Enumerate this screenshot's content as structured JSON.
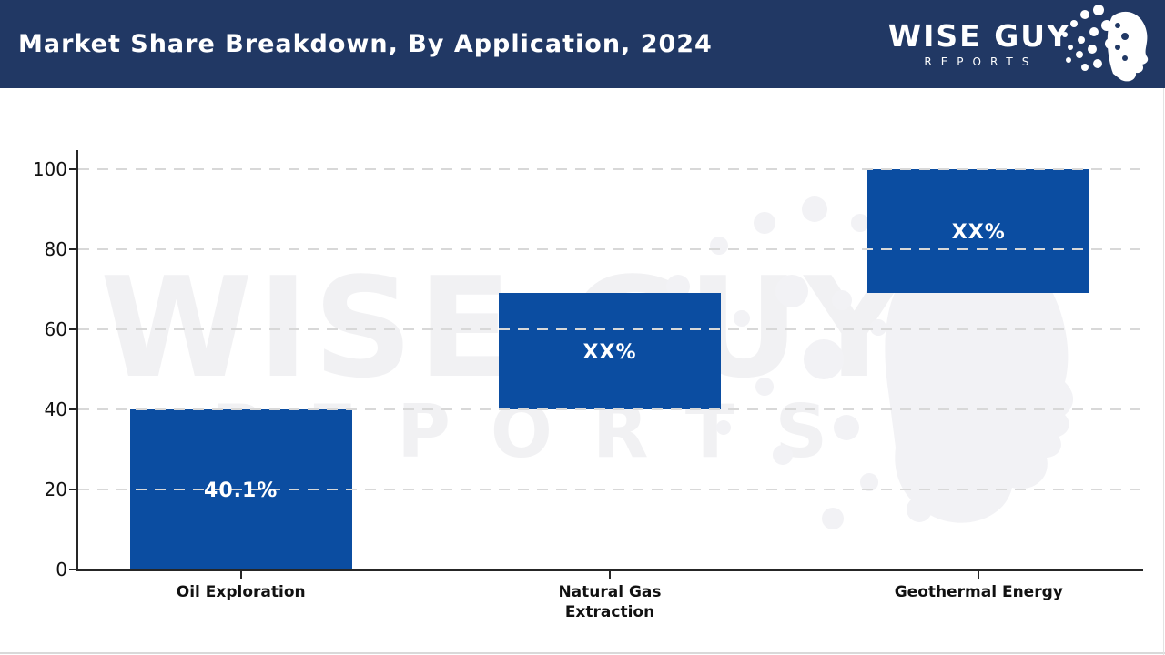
{
  "header": {
    "title": "Market Share Breakdown, By Application, 2024",
    "logo": {
      "main": "WISE GUY",
      "sub": "REPORTS"
    }
  },
  "watermark": {
    "line1": "WISE GUY",
    "line2": "REPORTS"
  },
  "colors": {
    "header_bg": "#213864",
    "bar": "#0b4da1",
    "grid": "#d8d8d8",
    "axis": "#262626",
    "tick_text": "#111111",
    "bar_label_text": "#ffffff",
    "watermark": "#f1f1f3"
  },
  "chart_data": {
    "type": "bar",
    "variant": "floating-range-bars",
    "title": "Market Share Breakdown, By Application, 2024",
    "xlabel": "",
    "ylabel": "",
    "categories": [
      "Oil Exploration",
      "Natural Gas Extraction",
      "Geothermal Energy"
    ],
    "bars": [
      {
        "category": "Oil Exploration",
        "start": 0,
        "end": 40.1,
        "label": "40.1%"
      },
      {
        "category": "Natural Gas Extraction",
        "start": 40,
        "end": 69,
        "label": "XX%"
      },
      {
        "category": "Geothermal Energy",
        "start": 69,
        "end": 100,
        "label": "XX%"
      }
    ],
    "yticks": [
      0,
      20,
      40,
      60,
      80,
      100
    ],
    "ylim": [
      0,
      105
    ],
    "grid": "horizontal-dashed",
    "legend": null
  }
}
